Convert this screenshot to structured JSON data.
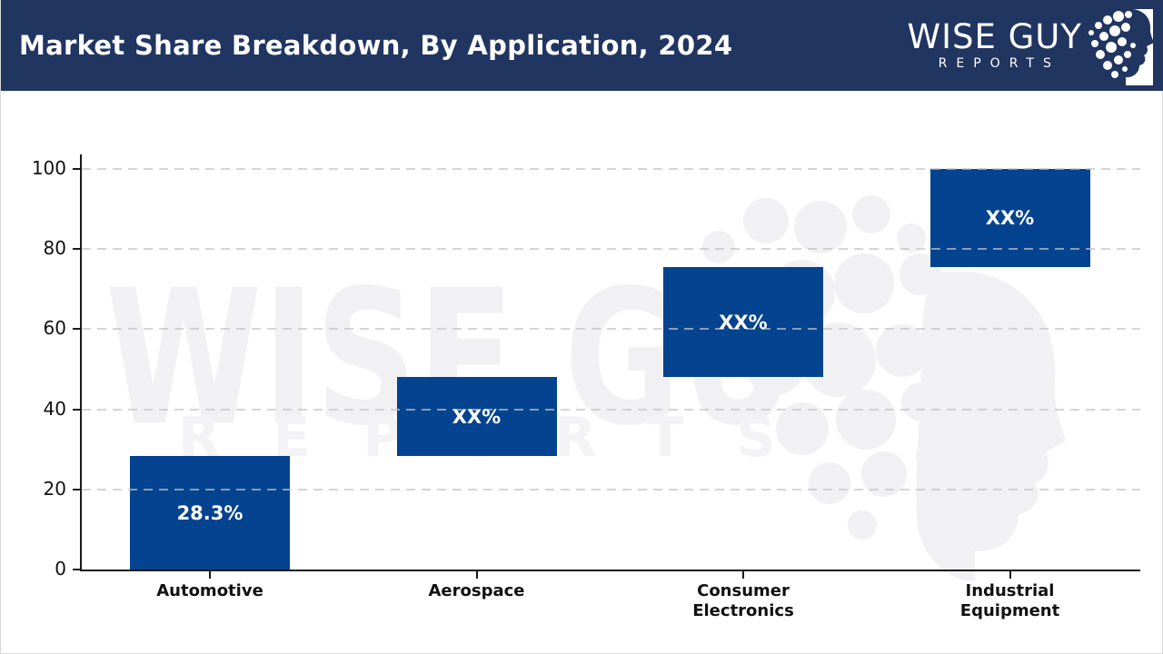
{
  "header": {
    "title": "Market Share Breakdown, By Application, 2024",
    "logo": {
      "name": "WISE GUY",
      "sub": "REPORTS"
    }
  },
  "watermark": {
    "name": "WISE GU",
    "sub": "REPORTS"
  },
  "colors": {
    "header_bg": "#213561",
    "bar": "#04438f",
    "axis": "#1a1a1a",
    "tick_label": "#111111",
    "bar_label": "#ffffff",
    "grid": "rgba(195,195,195,0.7)",
    "watermark": "#f1f1f4"
  },
  "chart_data": {
    "type": "bar",
    "variant": "waterfall",
    "title": "Market Share Breakdown, By Application, 2024",
    "categories": [
      "Automotive",
      "Aerospace",
      "Consumer Electronics",
      "Industrial Equipment"
    ],
    "category_lines": [
      [
        "Automotive"
      ],
      [
        "Aerospace"
      ],
      [
        "Consumer",
        "Electronics"
      ],
      [
        "Industrial",
        "Equipment"
      ]
    ],
    "segments": [
      {
        "category": "Automotive",
        "start": 0,
        "end": 28.3,
        "value": 28.3,
        "label": "28.3%"
      },
      {
        "category": "Aerospace",
        "start": 28.3,
        "end": 48.0,
        "value": 19.7,
        "label": "XX%"
      },
      {
        "category": "Consumer Electronics",
        "start": 48.0,
        "end": 75.5,
        "value": 27.5,
        "label": "XX%"
      },
      {
        "category": "Industrial Equipment",
        "start": 75.5,
        "end": 100.0,
        "value": 24.5,
        "label": "XX%"
      }
    ],
    "yticks": [
      0,
      20,
      40,
      60,
      80,
      100
    ],
    "ylim": [
      0,
      103.5
    ],
    "xlabel": "",
    "ylabel": "",
    "grid": "horizontal-dashed-over-bars",
    "legend": "none"
  }
}
